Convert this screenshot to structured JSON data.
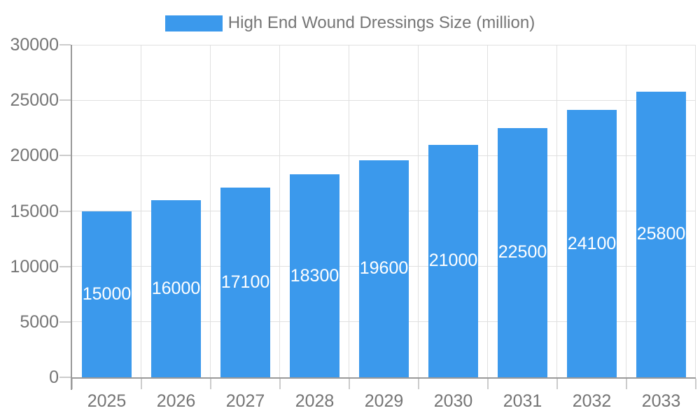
{
  "legend": {
    "label": "High End Wound Dressings Size (million)"
  },
  "colors": {
    "bar": "#3b99ec",
    "axis_line": "#999999",
    "gridline": "#e0e0e0",
    "tick": "#cccccc",
    "axis_text": "#757575",
    "bar_label_text": "#ffffff",
    "background": "#ffffff"
  },
  "chart_data": {
    "type": "bar",
    "title": "High End Wound Dressings Size (million)",
    "categories": [
      "2025",
      "2026",
      "2027",
      "2028",
      "2029",
      "2030",
      "2031",
      "2032",
      "2033"
    ],
    "values": [
      15000,
      16000,
      17100,
      18300,
      19600,
      21000,
      22500,
      24100,
      25800
    ],
    "xlabel": "",
    "ylabel": "",
    "ylim": [
      0,
      30000
    ],
    "yticks": [
      0,
      5000,
      10000,
      15000,
      20000,
      25000,
      30000
    ],
    "grid": true,
    "legend_position": "top-center",
    "bar_label_position": "inside-center"
  }
}
